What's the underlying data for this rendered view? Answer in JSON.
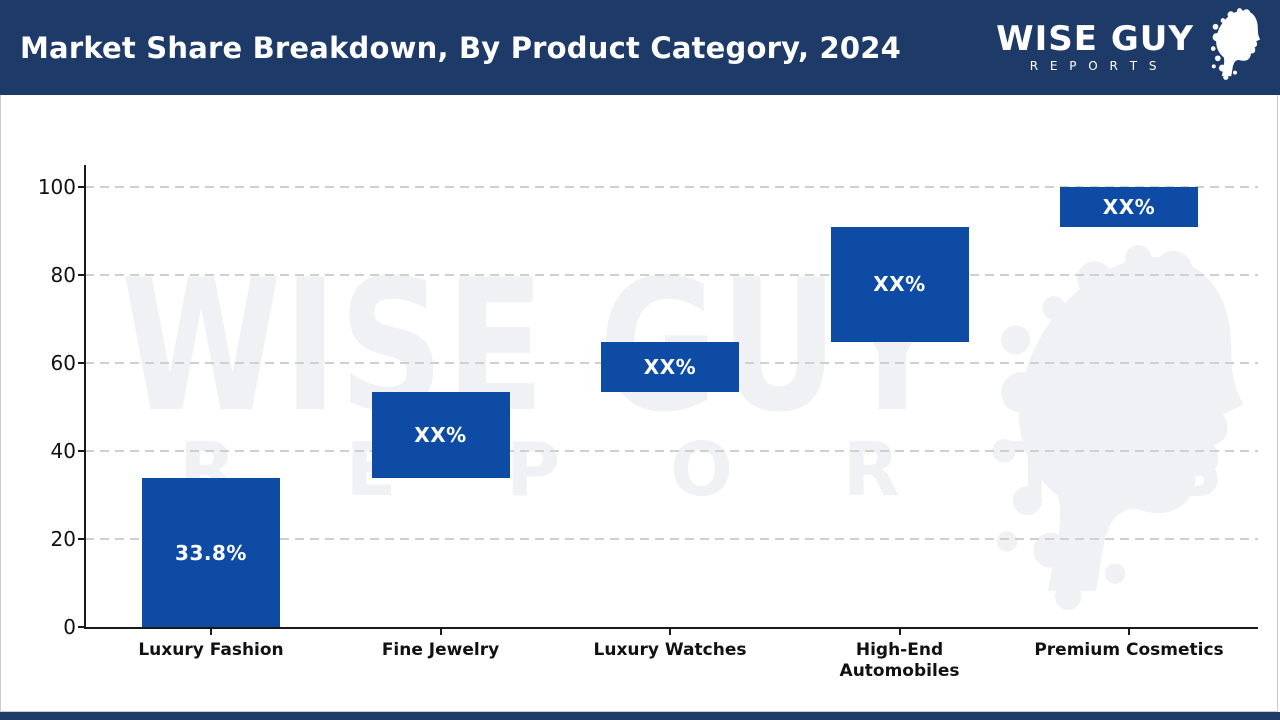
{
  "header": {
    "title": "Market Share Breakdown, By Product Category, 2024",
    "bg_color": "#1e3a68",
    "brand_line1": "WISE GUY",
    "brand_line2": "R E P O R T S"
  },
  "watermark": {
    "line1": "WISE GUY",
    "line2": "R E P O R T S",
    "color": "#f0f1f4"
  },
  "footer": {
    "bg_color": "#1e3a68"
  },
  "chart_data": {
    "type": "bar",
    "subtype": "waterfall",
    "title": "Market Share Breakdown, By Product Category, 2024",
    "categories": [
      "Luxury Fashion",
      "Fine Jewelry",
      "Luxury Watches",
      "High-End\nAutomobiles",
      "Premium Cosmetics"
    ],
    "segments": [
      {
        "category": "Luxury Fashion",
        "start": 0,
        "end": 33.8,
        "value": 33.8,
        "label": "33.8%"
      },
      {
        "category": "Fine Jewelry",
        "start": 33.8,
        "end": 53.4,
        "value": 19.6,
        "label": "XX%"
      },
      {
        "category": "Luxury Watches",
        "start": 53.4,
        "end": 64.8,
        "value": 11.4,
        "label": "XX%"
      },
      {
        "category": "High-End Automobiles",
        "start": 64.8,
        "end": 90.9,
        "value": 26.1,
        "label": "XX%"
      },
      {
        "category": "Premium Cosmetics",
        "start": 90.9,
        "end": 100.0,
        "value": 9.1,
        "label": "XX%"
      }
    ],
    "yticks": [
      0,
      20,
      40,
      60,
      80,
      100
    ],
    "ylim": [
      0,
      105
    ],
    "xlabel": "",
    "ylabel": "",
    "grid": "dashed-horizontal",
    "legend": "none",
    "bar_color": "#0d4ba4",
    "bar_label_color": "#ffffff",
    "gridline_color": "#cfcfcf",
    "axis_color": "#1a1a1a",
    "tick_label_color": "#111111"
  }
}
